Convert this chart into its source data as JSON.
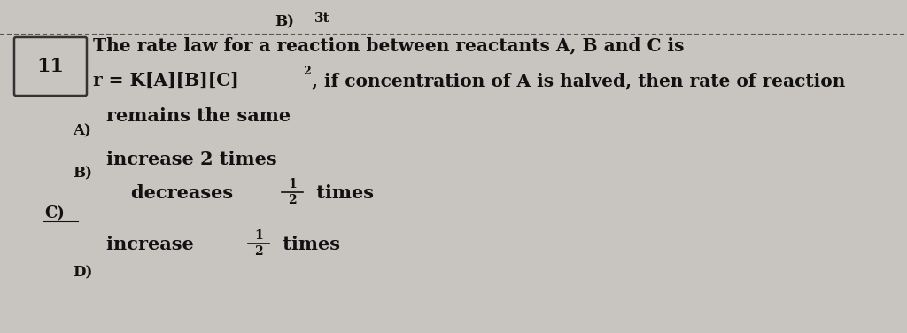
{
  "background_color": "#c8c4bf",
  "top_label_b": "B)",
  "top_label_num": "3t",
  "question_number": "11",
  "line1": "The rate law for a reaction between reactants A, B and C is",
  "line2_pre": "r = K[A][B][C]",
  "line2_super": "2",
  "line2_post": ", if concentration of A is halved, then rate of reaction",
  "optA_label": "A)",
  "optA_text": "remains the same",
  "optB_label": "B)",
  "optB_text": "increase 2 times",
  "optC_label": "C)",
  "optC_pre": "decreases ",
  "optC_frac_num": "1",
  "optC_frac_den": "2",
  "optC_post": " times",
  "optD_label": "D)",
  "optD_pre": "increase ",
  "optD_frac_num": "1",
  "optD_frac_den": "2",
  "optD_post": " times",
  "text_color": "#111111",
  "box_edge_color": "#333333",
  "dotted_color": "#555555",
  "fs_question": 14.5,
  "fs_option": 15,
  "fs_label": 12,
  "fs_number": 16
}
